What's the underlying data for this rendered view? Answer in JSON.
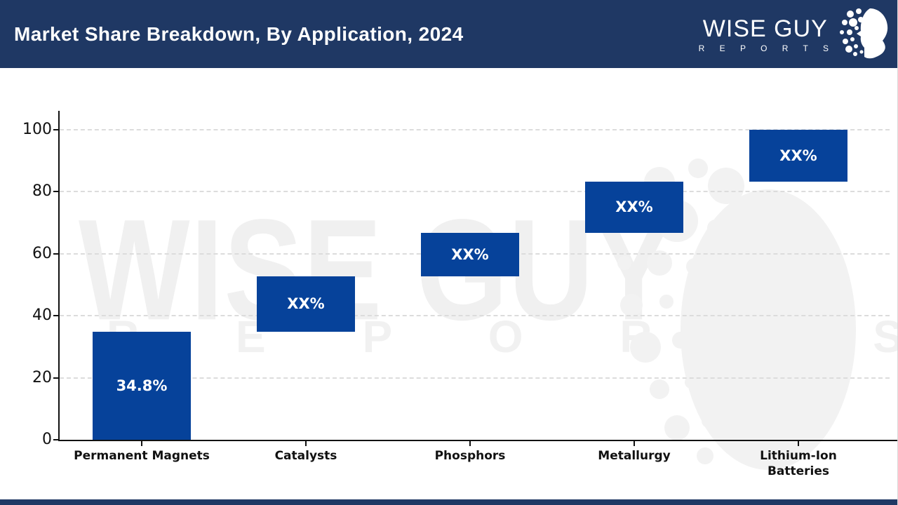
{
  "header": {
    "title": "Market Share Breakdown, By Application, 2024",
    "bg_color": "#1f3864",
    "text_color": "#ffffff",
    "logo": {
      "name": "WISE GUY",
      "subtitle": "R E P O R T S"
    }
  },
  "watermark": {
    "title": "WISE GUY",
    "subtitle": "R E P O R T S",
    "color": "#f0f0f0"
  },
  "footer": {
    "bar_color": "#1f3864"
  },
  "chart_data": {
    "type": "bar",
    "subtype": "waterfall",
    "title": "Market Share Breakdown, By Application, 2024",
    "categories": [
      "Permanent Magnets",
      "Catalysts",
      "Phosphors",
      "Metallurgy",
      "Lithium-Ion Batteries"
    ],
    "x_tick_labels": [
      "Permanent Magnets",
      "Catalysts",
      "Phosphors",
      "Metallurgy",
      "Lithium-Ion\nBatteries"
    ],
    "segments": [
      {
        "category": "Permanent Magnets",
        "start": 0,
        "end": 34.8,
        "label": "34.8%"
      },
      {
        "category": "Catalysts",
        "start": 34.8,
        "end": 52.7,
        "label": "XX%"
      },
      {
        "category": "Phosphors",
        "start": 52.7,
        "end": 66.7,
        "label": "XX%"
      },
      {
        "category": "Metallurgy",
        "start": 66.7,
        "end": 83.2,
        "label": "XX%"
      },
      {
        "category": "Lithium-Ion Batteries",
        "start": 83.2,
        "end": 100,
        "label": "XX%"
      }
    ],
    "ylim": [
      0,
      105
    ],
    "yticks": [
      0,
      20,
      40,
      60,
      80,
      100
    ],
    "xlabel": "",
    "ylabel": "",
    "grid": "horizontal-dashed",
    "legend": "none",
    "bar_color": "#06429a",
    "bar_label_color": "#ffffff",
    "axis_color": "#111111"
  }
}
